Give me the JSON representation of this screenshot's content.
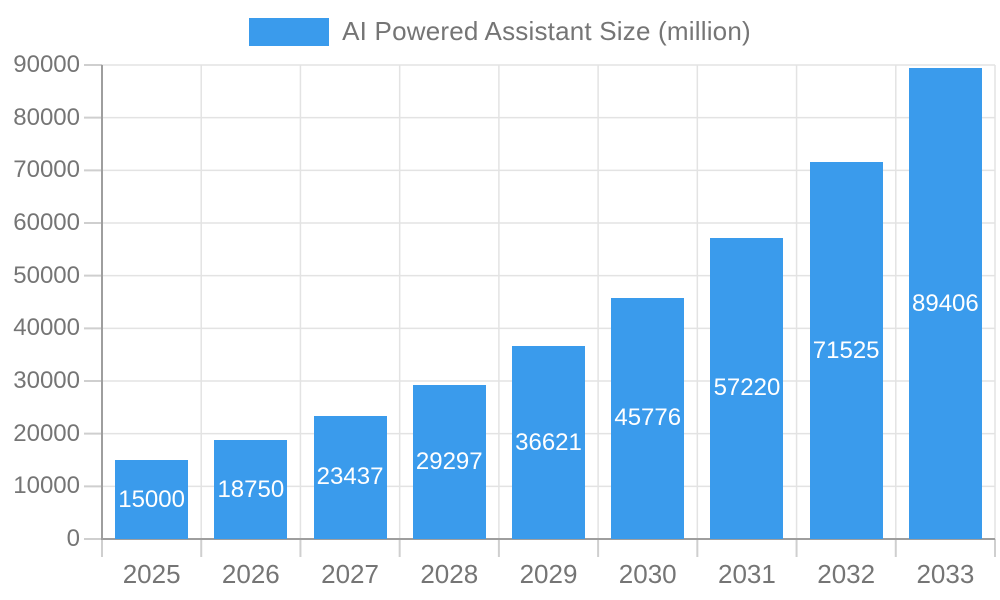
{
  "chart_data": {
    "type": "bar",
    "title": "AI Powered Assistant Size (million)",
    "legend": {
      "label": "AI Powered Assistant Size (million)",
      "position": "top"
    },
    "categories": [
      "2025",
      "2026",
      "2027",
      "2028",
      "2029",
      "2030",
      "2031",
      "2032",
      "2033"
    ],
    "values": [
      15000,
      18750,
      23437,
      29297,
      36621,
      45776,
      57220,
      71525,
      89406
    ],
    "value_labels": [
      "15000",
      "18750",
      "23437",
      "29297",
      "36621",
      "45776",
      "57220",
      "71525",
      "89406"
    ],
    "xlabel": "",
    "ylabel": "",
    "ylim": [
      0,
      90000
    ],
    "ytick_step": 10000,
    "y_ticks": [
      "0",
      "10000",
      "20000",
      "30000",
      "40000",
      "50000",
      "60000",
      "70000",
      "80000",
      "90000"
    ],
    "grid": true,
    "legend_position": "top",
    "colors": {
      "bar": "#3a9bec",
      "value_label": "#ffffff",
      "axis_line": "#9e9e9e",
      "tick_line": "#cfcfcf",
      "grid_line": "#e3e3e3",
      "axis_text": "#757575",
      "legend_text": "#757575",
      "background": "#ffffff"
    }
  }
}
